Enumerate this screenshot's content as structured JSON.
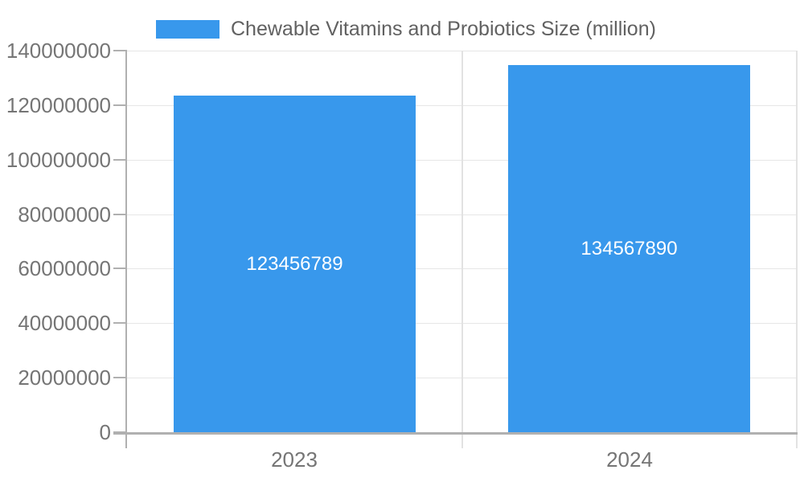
{
  "page": {
    "background": "#ffffff"
  },
  "colors": {
    "bar": "#3898EC",
    "bar_label": "#ffffff",
    "axis_line": "#b0b0b0",
    "gridline": "#e6e6e6",
    "gridline_vertical": "#e2e2e2",
    "tick_label": "#757575",
    "legend_text": "#616161"
  },
  "legend": {
    "label": "Chewable Vitamins and Probiotics Size (million)"
  },
  "chart_data": {
    "type": "bar",
    "title": "",
    "legend_position": "top",
    "grid": true,
    "categories": [
      "2023",
      "2024"
    ],
    "series": [
      {
        "name": "Chewable Vitamins and Probiotics Size (million)",
        "color": "#3898EC",
        "values": [
          123456789,
          134567890
        ]
      }
    ],
    "bar_value_labels": [
      "123456789",
      "134567890"
    ],
    "ylim": [
      0,
      140000000
    ],
    "ytick_step": 20000000,
    "yticks": [
      0,
      20000000,
      40000000,
      60000000,
      80000000,
      100000000,
      120000000,
      140000000
    ],
    "ytick_labels": [
      "0",
      "20000000",
      "40000000",
      "60000000",
      "80000000",
      "100000000",
      "120000000",
      "140000000"
    ],
    "xlabel": "",
    "ylabel": ""
  }
}
